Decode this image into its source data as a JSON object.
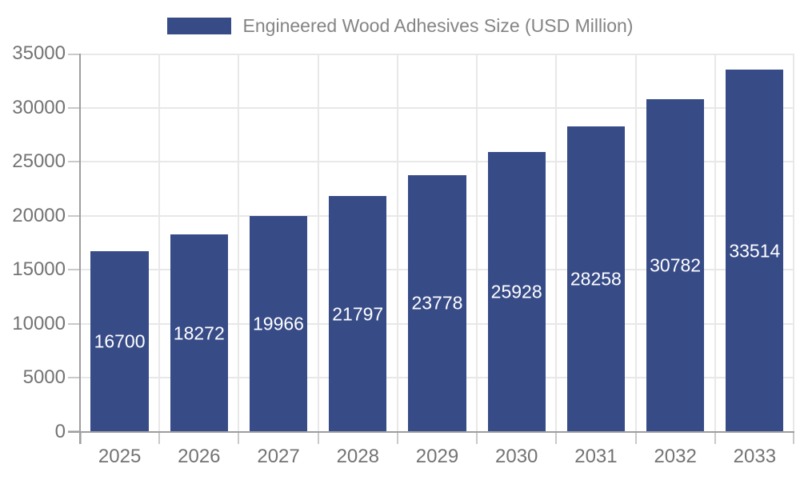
{
  "chart_data": {
    "type": "bar",
    "title": "Engineered Wood Adhesives Size (USD Million)",
    "categories": [
      "2025",
      "2026",
      "2027",
      "2028",
      "2029",
      "2030",
      "2031",
      "2032",
      "2033"
    ],
    "series": [
      {
        "name": "Engineered Wood Adhesives Size (USD Million)",
        "values": [
          16700,
          18272,
          19966,
          21797,
          23778,
          25928,
          28258,
          30782,
          33514
        ]
      }
    ],
    "xlabel": "",
    "ylabel": "",
    "ylim": [
      0,
      35000
    ],
    "yticks": [
      0,
      5000,
      10000,
      15000,
      20000,
      25000,
      30000,
      35000
    ],
    "grid": true,
    "legend_position": "top-center",
    "value_label_position": "inside-center"
  },
  "colors": {
    "bar": "#374B87",
    "grid": "#E8E8E8",
    "axis": "#9E9E9E",
    "tick": "#C9C9C9",
    "axis-text": "#737373",
    "legend-text": "#848484",
    "value-label": "#FFFFFF"
  }
}
